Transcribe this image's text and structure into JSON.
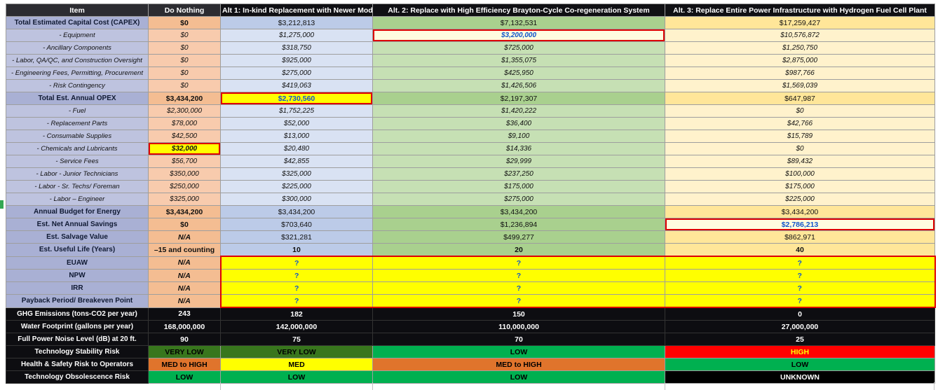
{
  "table": {
    "header": {
      "cells": [
        "Item",
        "Do Nothing",
        "Alt 1: In-kind Replacement with Newer Model",
        "Alt. 2: Replace with High Efficiency Brayton-Cycle Co-regeneration System",
        "Alt. 3: Replace Entire Power Infrastructure with Hydrogen Fuel Cell Plant"
      ]
    },
    "rows": [
      {
        "style": "major",
        "label": "Total Estimated Capital Cost (CAPEX)",
        "values": [
          "$0",
          "$3,212,813",
          "$7,132,531",
          "$17,259,427"
        ]
      },
      {
        "style": "sub",
        "label": "- Equipment",
        "values": [
          "$0",
          "$1,275,000",
          "$3,200,000",
          "$10,576,872"
        ],
        "extras": {
          "2": "hl-pale redbox txt-blue bold"
        }
      },
      {
        "style": "sub",
        "label": "- Ancillary Components",
        "values": [
          "$0",
          "$318,750",
          "$725,000",
          "$1,250,750"
        ]
      },
      {
        "style": "sub",
        "label": "- Labor, QA/QC, and Construction Oversight",
        "values": [
          "$0",
          "$925,000",
          "$1,355,075",
          "$2,875,000"
        ]
      },
      {
        "style": "sub",
        "label": "- Engineering Fees, Permitting, Procurement",
        "values": [
          "$0",
          "$275,000",
          "$425,950",
          "$987,766"
        ]
      },
      {
        "style": "sub",
        "label": "- Risk Contingency",
        "values": [
          "$0",
          "$419,063",
          "$1,426,506",
          "$1,569,039"
        ]
      },
      {
        "style": "major",
        "label": "Total Est. Annual OPEX",
        "values": [
          "$3,434,200",
          "$2,730,560",
          "$2,197,307",
          "$647,987"
        ],
        "extras": {
          "1": "hl-yellow redbox txt-blue bold"
        }
      },
      {
        "style": "sub",
        "label": "- Fuel",
        "values": [
          "$2,300,000",
          "$1,752,225",
          "$1,420,222",
          "$0"
        ]
      },
      {
        "style": "sub",
        "label": "- Replacement Parts",
        "values": [
          "$78,000",
          "$52,000",
          "$36,400",
          "$42,766"
        ]
      },
      {
        "style": "sub",
        "label": "- Consumable Supplies",
        "values": [
          "$42,500",
          "$13,000",
          "$9,100",
          "$15,789"
        ]
      },
      {
        "style": "sub",
        "label": "- Chemicals and Lubricants",
        "values": [
          "$32,000",
          "$20,480",
          "$14,336",
          "$0"
        ],
        "extras": {
          "0": "hl-yellow redbox bold"
        }
      },
      {
        "style": "sub",
        "label": "- Service Fees",
        "values": [
          "$56,700",
          "$42,855",
          "$29,999",
          "$89,432"
        ]
      },
      {
        "style": "sub",
        "label": "- Labor - Junior Technicians",
        "values": [
          "$350,000",
          "$325,000",
          "$237,250",
          "$100,000"
        ]
      },
      {
        "style": "sub",
        "label": "- Labor - Sr. Techs/ Foreman",
        "values": [
          "$250,000",
          "$225,000",
          "$175,000",
          "$175,000"
        ]
      },
      {
        "style": "sub",
        "label": "- Labor – Engineer",
        "values": [
          "$325,000",
          "$300,000",
          "$275,000",
          "$225,000"
        ]
      },
      {
        "style": "major",
        "label": "Annual Budget for Energy",
        "values": [
          "$3,434,200",
          "$3,434,200",
          "$3,434,200",
          "$3,434,200"
        ]
      },
      {
        "style": "major",
        "label": "Est. Net Annual Savings",
        "values": [
          "$0",
          "$703,640",
          "$1,236,894",
          "$2,786,213"
        ],
        "extras": {
          "3": "hl-pale redbox txt-blue bold"
        }
      },
      {
        "style": "major",
        "label": "Est. Salvage Value",
        "values": [
          "N/A",
          "$321,281",
          "$499,277",
          "$862,971"
        ],
        "extras": {
          "0": "na"
        }
      },
      {
        "style": "major",
        "label": "Est. Useful Life (Years)",
        "values": [
          "–15 and counting",
          "10",
          "20",
          "40"
        ],
        "extras": {
          "1": "bold",
          "2": "bold",
          "3": "bold"
        }
      },
      {
        "style": "question",
        "label": "EUAW",
        "values": [
          "N/A",
          "?",
          "?",
          "?"
        ],
        "extras": {
          "0": "na",
          "1": "q q-top q-left",
          "2": "q q-top",
          "3": "q q-top q-right"
        }
      },
      {
        "style": "question",
        "label": "NPW",
        "values": [
          "N/A",
          "?",
          "?",
          "?"
        ],
        "extras": {
          "0": "na",
          "1": "q q-left",
          "2": "q",
          "3": "q q-right"
        }
      },
      {
        "style": "question",
        "label": "IRR",
        "values": [
          "N/A",
          "?",
          "?",
          "?"
        ],
        "extras": {
          "0": "na",
          "1": "q q-left",
          "2": "q",
          "3": "q q-right"
        }
      },
      {
        "style": "question",
        "label": "Payback Period/ Breakeven Point",
        "values": [
          "N/A",
          "?",
          "?",
          "?"
        ],
        "extras": {
          "0": "na",
          "1": "q q-bottom q-left",
          "2": "q q-bottom",
          "3": "q q-bottom q-right"
        }
      },
      {
        "style": "dark",
        "label": "GHG Emissions (tons-CO2 per year)",
        "values": [
          "243",
          "182",
          "150",
          "0"
        ]
      },
      {
        "style": "dark",
        "label": "Water Footprint (gallons per year)",
        "values": [
          "168,000,000",
          "142,000,000",
          "110,000,000",
          "27,000,000"
        ]
      },
      {
        "style": "dark",
        "label": "Full Power Noise Level (dB) at 20 ft.",
        "values": [
          "90",
          "75",
          "70",
          "25"
        ]
      },
      {
        "style": "risk",
        "label": "Technology Stability Risk",
        "values": [
          "VERY LOW",
          "VERY LOW",
          "LOW",
          "HIGH"
        ],
        "extras": {
          "0": "risk-verylow",
          "1": "risk-verylow",
          "2": "risk-low",
          "3": "risk-high"
        }
      },
      {
        "style": "risk",
        "label": "Health & Safety Risk to Operators",
        "values": [
          "MED to HIGH",
          "MED",
          "MED to HIGH",
          "LOW"
        ],
        "extras": {
          "0": "risk-medhigh",
          "1": "risk-med",
          "2": "risk-medhigh",
          "3": "risk-low"
        }
      },
      {
        "style": "risk",
        "label": "Technology Obsolescence Risk",
        "values": [
          "LOW",
          "LOW",
          "LOW",
          "UNKNOWN"
        ],
        "extras": {
          "0": "risk-low",
          "1": "risk-low",
          "2": "risk-low",
          "3": "risk-unknown"
        }
      }
    ]
  },
  "palette": {
    "header_bg": "#101014",
    "header_bg_left": "#2c2c31",
    "item_major": "#a9b0d4",
    "item_sub": "#bec3df",
    "do_nothing_major": "#f4bd92",
    "do_nothing_sub": "#f8cbad",
    "alt1_major": "#bccbe8",
    "alt1_sub": "#d9e2f3",
    "alt2_major": "#a9d08e",
    "alt2_sub": "#c6e0b4",
    "alt3_major": "#ffe699",
    "alt3_sub": "#fff2cc",
    "dark_row": "#0d0d11",
    "highlight_yellow": "#ffff00",
    "highlight_pale": "#fffcdf",
    "red_box": "#dd0000",
    "link_blue": "#1155cc",
    "risk_very_low": "#38761d",
    "risk_low": "#00b050",
    "risk_med": "#ffff00",
    "risk_med_high": "#e0742c",
    "risk_high": "#ff0000",
    "risk_unknown": "#000000",
    "left_marker_green": "#34a853"
  }
}
